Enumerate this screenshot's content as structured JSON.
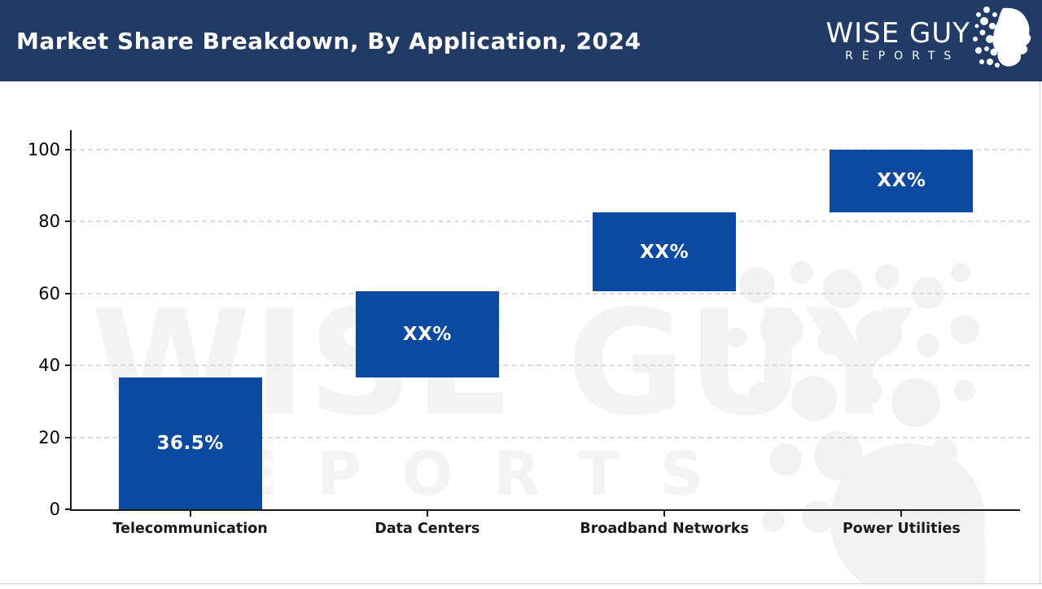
{
  "header": {
    "title": "Market Share Breakdown, By Application, 2024",
    "bg_color": "#213a66",
    "logo": {
      "line1": "WISE GUY",
      "line2": "REPORTS"
    }
  },
  "watermark": {
    "line1": "WISE GUY",
    "line2": "REPORTS"
  },
  "chart_data": {
    "type": "bar",
    "subtype": "waterfall",
    "title": "Market Share Breakdown, By Application, 2024",
    "categories": [
      "Telecommunication",
      "Data Centers",
      "Broadband Networks",
      "Power Utilities"
    ],
    "segments": [
      {
        "category": "Telecommunication",
        "start": 0,
        "end": 36.5,
        "label": "36.5%"
      },
      {
        "category": "Data Centers",
        "start": 36.5,
        "end": 60.5,
        "label": "XX%"
      },
      {
        "category": "Broadband Networks",
        "start": 60.5,
        "end": 82.5,
        "label": "XX%"
      },
      {
        "category": "Power Utilities",
        "start": 82.5,
        "end": 100,
        "label": "XX%"
      }
    ],
    "bar_labels": [
      "36.5%",
      "XX%",
      "XX%",
      "XX%"
    ],
    "yticks": [
      0,
      20,
      40,
      60,
      80,
      100
    ],
    "ylim": [
      0,
      105
    ],
    "xlabel": "",
    "ylabel": "",
    "grid": "horizontal-dashed",
    "legend": "none",
    "bar_color": "#0b4aa2",
    "bar_label_color": "#ffffff",
    "axis_color": "#1a1a1a",
    "gridline_color": "#d9d9d9"
  }
}
